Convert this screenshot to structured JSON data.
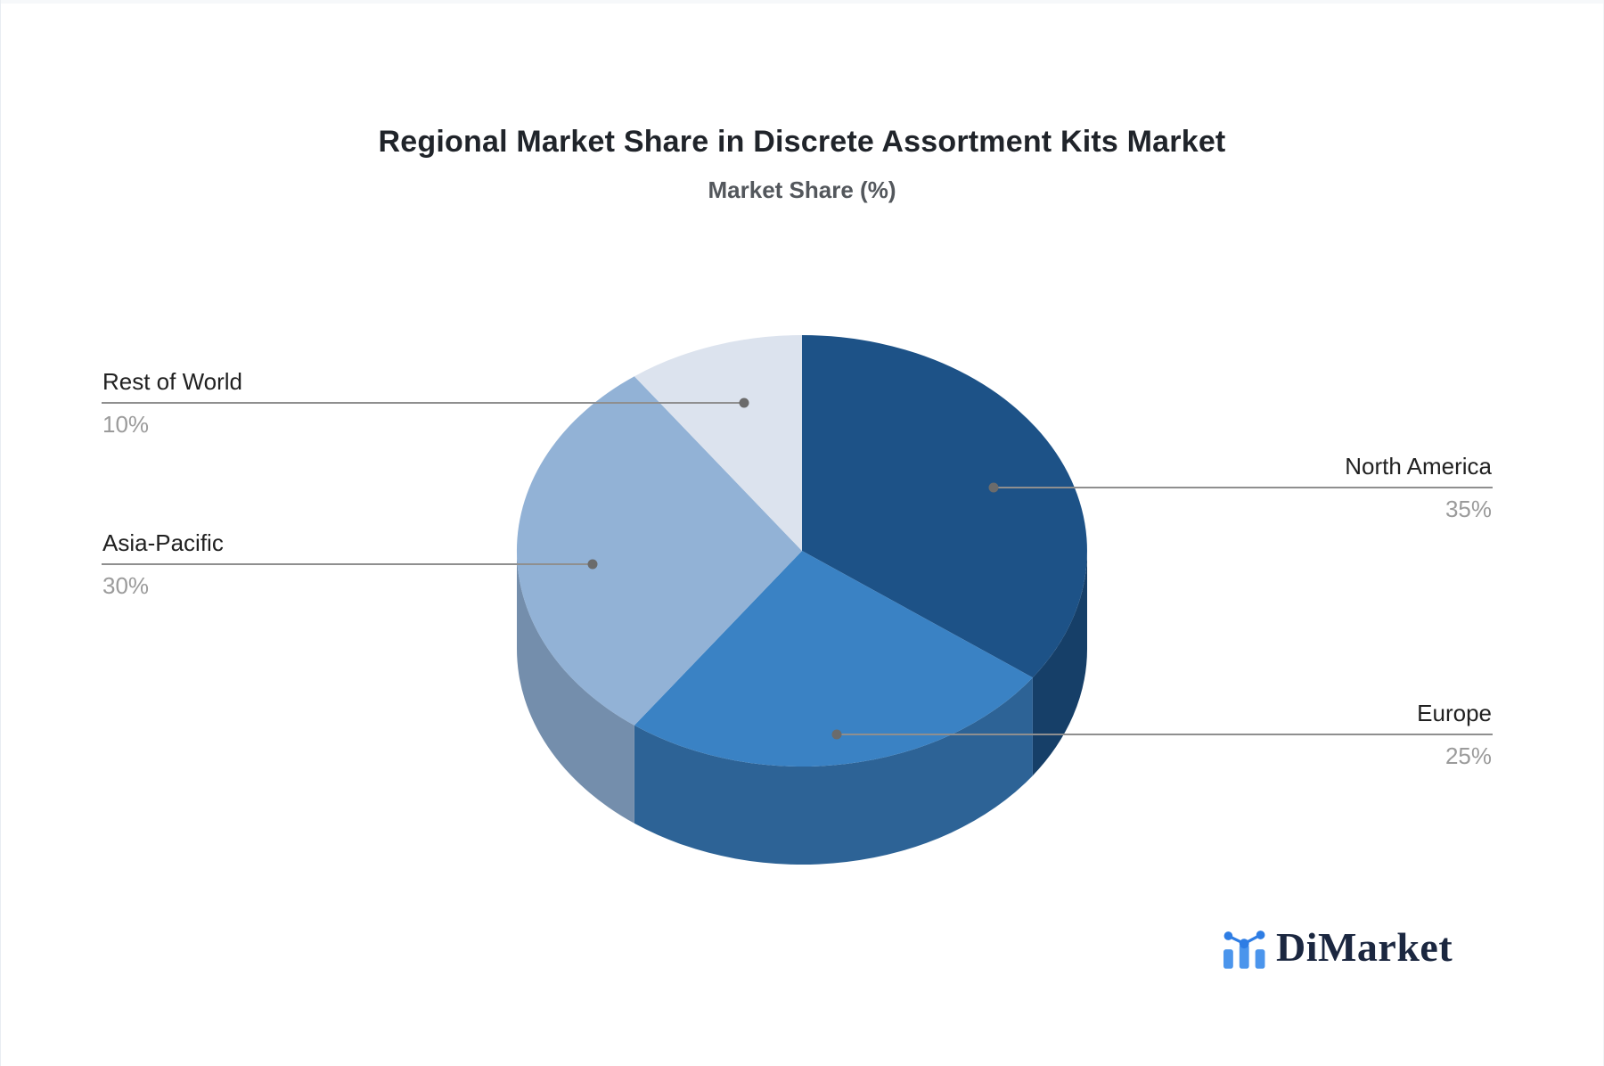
{
  "chart_data": {
    "type": "pie",
    "title": "Regional Market Share in Discrete Assortment Kits Market",
    "subtitle": "Market Share (%)",
    "unit": "%",
    "effect": "3d",
    "start_angle": "12-oclock",
    "direction": "clockwise",
    "legend": "none",
    "labels_position": "outside-callout",
    "slices": [
      {
        "label": "North America",
        "value": 35,
        "display": "35%",
        "color": "#1d5287",
        "side_color": "#163f68",
        "callout_side": "right"
      },
      {
        "label": "Europe",
        "value": 25,
        "display": "25%",
        "color": "#3a82c4",
        "side_color": "#2d6396",
        "callout_side": "right"
      },
      {
        "label": "Asia-Pacific",
        "value": 30,
        "display": "30%",
        "color": "#92b2d6",
        "side_color": "#748eac",
        "callout_side": "left"
      },
      {
        "label": "Rest of World",
        "value": 10,
        "display": "10%",
        "color": "#dce3ee",
        "side_color": "#b9c4d6",
        "callout_side": "left"
      }
    ]
  },
  "callout_style": {
    "line_color": "#8f8f8f",
    "dot_color": "#6b6b6b",
    "name_color": "#212121",
    "percent_color": "#9b9b9b"
  },
  "logo": {
    "text": "DiMarket",
    "icon": "bar-line-chart-icon",
    "text_color": "#1b2740",
    "bar_color": "#4b95ec",
    "dot_color": "#2e7de4"
  }
}
